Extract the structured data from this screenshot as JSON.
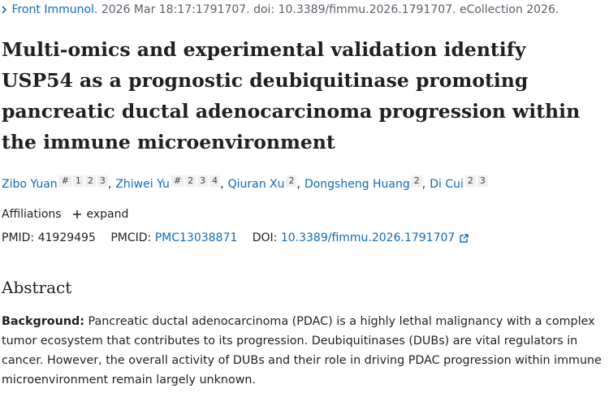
{
  "citation": {
    "journal": "Front Immunol.",
    "details": "2026 Mar 18:17:1791707. doi: 10.3389/fimmu.2026.1791707. eCollection 2026."
  },
  "title": "Multi-omics and experimental validation identify USP54 as a prognostic deubiquitinase promoting pancreatic ductal adenocarcinoma progression within the immune microenvironment",
  "authors": {
    "separator": ",",
    "list": [
      {
        "name": "Zibo Yuan",
        "sups": [
          "#",
          "1",
          "2",
          "3"
        ]
      },
      {
        "name": "Zhiwei Yu",
        "sups": [
          "#",
          "2",
          "3",
          "4"
        ]
      },
      {
        "name": "Qiuran Xu",
        "sups": [
          "2"
        ]
      },
      {
        "name": "Dongsheng Huang",
        "sups": [
          "2"
        ]
      },
      {
        "name": "Di Cui",
        "sups": [
          "2",
          "3"
        ]
      }
    ]
  },
  "affiliations": {
    "label": "Affiliations",
    "expand": "expand"
  },
  "identifiers": {
    "pmid_label": "PMID:",
    "pmid": "41929495",
    "pmcid_label": "PMCID:",
    "pmcid": "PMC13038871",
    "doi_label": "DOI:",
    "doi": "10.3389/fimmu.2026.1791707"
  },
  "abstract": {
    "heading": "Abstract",
    "label": "Background:",
    "text": "Pancreatic ductal adenocarcinoma (PDAC) is a highly lethal malignancy with a complex tumor ecosystem that contributes to its progression. Deubiquitinases (DUBs) are vital regulators in cancer. However, the overall activity of DUBs and their role in driving PDAC progression within immune microenvironment remain largely unknown."
  }
}
